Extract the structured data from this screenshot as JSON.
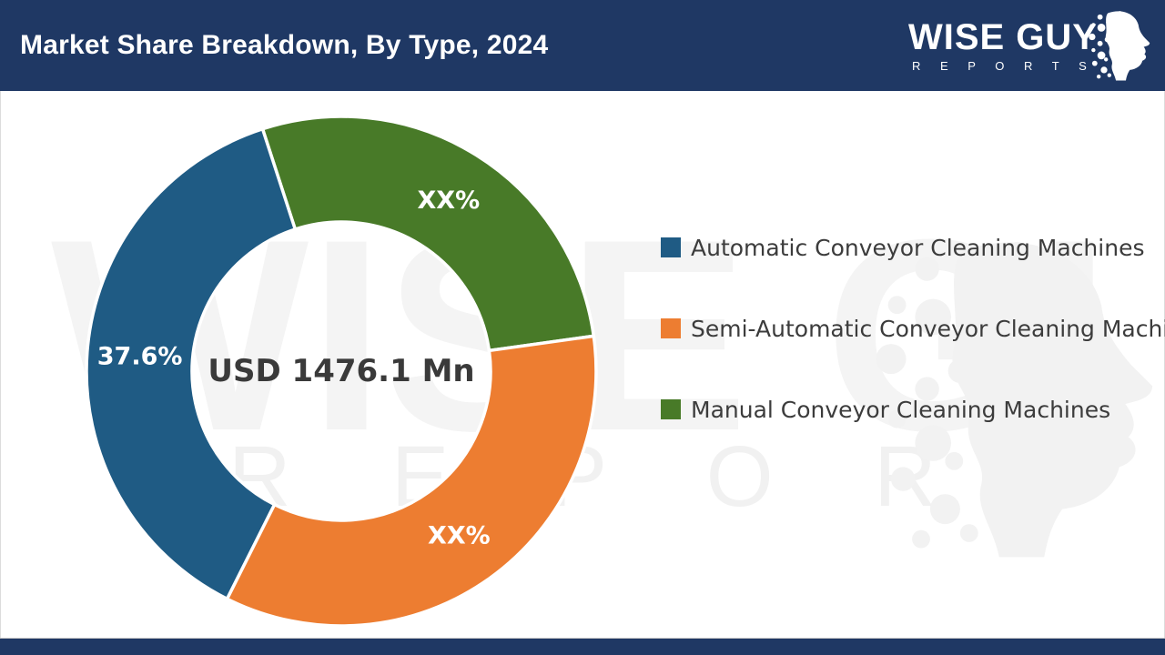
{
  "header": {
    "title": "Market Share Breakdown, By Type, 2024",
    "logo": {
      "name_line": "WISE GUY",
      "reports_line": "R E P O R T S"
    }
  },
  "watermark": {
    "line1": "WISE GUY",
    "line2": "R E P O R T S"
  },
  "chart_data": {
    "type": "pie",
    "subtype": "donut",
    "title": "Market Share Breakdown, By Type, 2024",
    "center_label": "USD 1476.1 Mn",
    "start_angle_deg": 342,
    "direction": "clockwise",
    "legend_position": "right",
    "segments": [
      {
        "name": "Automatic Conveyor Cleaning Machines",
        "color": "#1F5B84",
        "value_pct": 37.6,
        "label": "37.6%"
      },
      {
        "name": "Semi-Automatic Conveyor Cleaning Machines",
        "color": "#ED7D31",
        "value_pct": 34.6,
        "label": "XX%"
      },
      {
        "name": "Manual Conveyor Cleaning Machines",
        "color": "#487A28",
        "value_pct": 27.8,
        "label": "XX%"
      }
    ]
  },
  "colors": {
    "header_bg": "#1F3864",
    "footer_bg": "#1F3864",
    "legend_text": "#3C3C3C",
    "center_text": "#3A3A3A",
    "watermark": "#F2F2F2",
    "segment_separator": "#FFFFFF"
  }
}
